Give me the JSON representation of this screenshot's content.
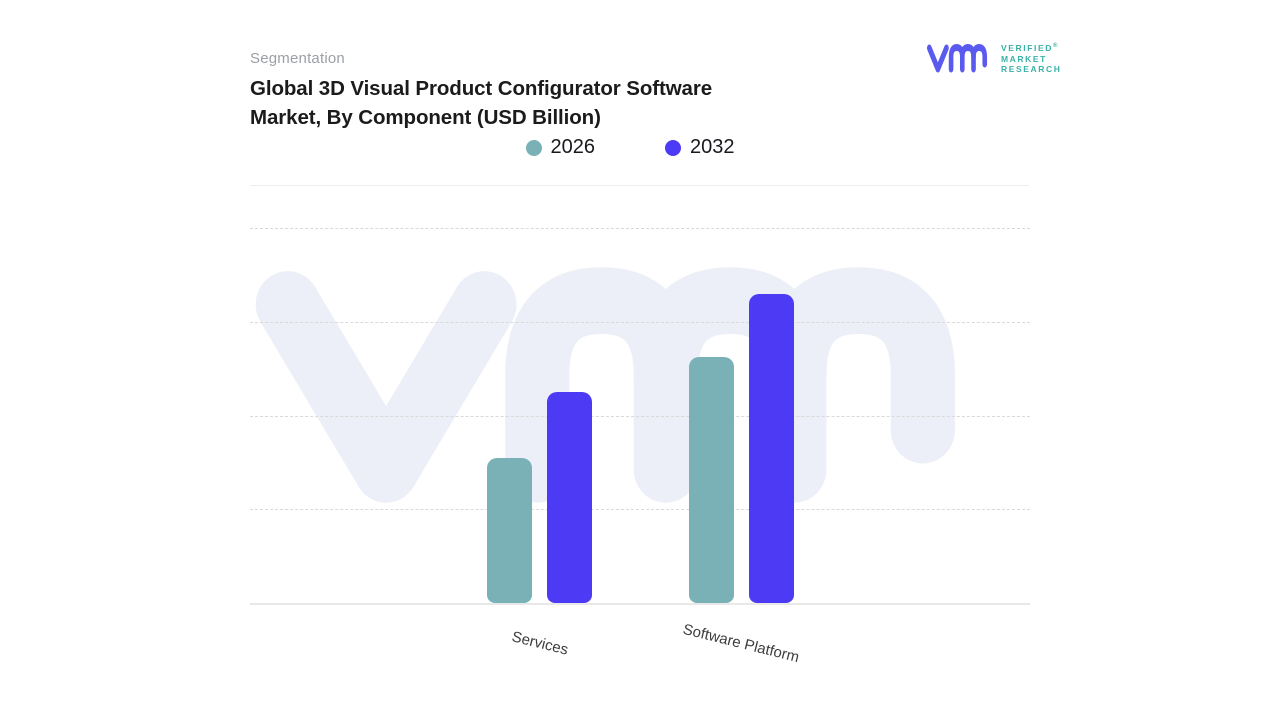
{
  "header": {
    "eyebrow": "Segmentation",
    "title_line1": "Global 3D Visual Product Configurator Software",
    "title_line2": "Market, By Component (USD Billion)"
  },
  "logo": {
    "line1": "VERIFIED",
    "registered": "®",
    "line2": "MARKET",
    "line3": "RESEARCH",
    "monogram_color": "#5a5aef",
    "text_color": "#38b2a7"
  },
  "chart_data": {
    "type": "bar",
    "title": "Global 3D Visual Product Configurator Software Market, By Component (USD Billion)",
    "categories": [
      "Services",
      "Software Platform"
    ],
    "series": [
      {
        "name": "2026",
        "color": "#79b1b7",
        "values": [
          1.55,
          2.62
        ]
      },
      {
        "name": "2032",
        "color": "#4c3af5",
        "values": [
          2.25,
          3.3
        ]
      }
    ],
    "xlabel": "",
    "ylabel": "",
    "ylim": [
      0,
      4
    ],
    "y_tick_labels": "none shown on chart; values estimated in gridline units (1 unit per dashed gridline, USD Billion scale not labeled)",
    "grid": "horizontal dashed gridlines at units 1-4, solid baseline at 0",
    "legend_position": "top center",
    "bar_corner_style": "rounded",
    "category_label_rotation_deg": 14,
    "watermark": "vmr monogram, light lavender, behind plot area"
  }
}
